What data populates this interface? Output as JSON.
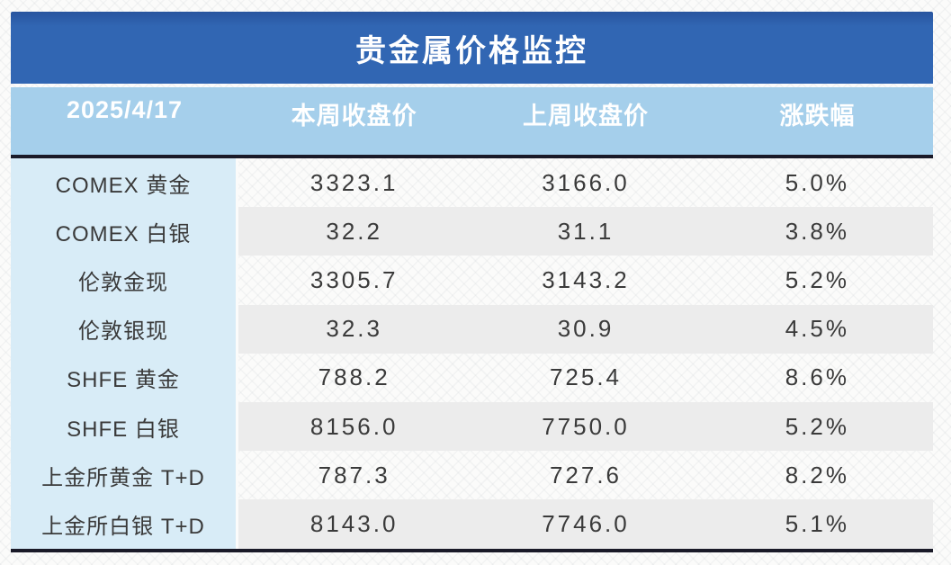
{
  "title": "贵金属价格监控",
  "header": {
    "date_label": "2025/4/17",
    "columns": [
      "本周收盘价",
      "上周收盘价",
      "涨跌幅"
    ]
  },
  "chart_data": {
    "type": "table",
    "title": "贵金属价格监控",
    "columns": [
      "2025/4/17",
      "本周收盘价",
      "上周收盘价",
      "涨跌幅"
    ],
    "rows": [
      [
        "COMEX 黄金",
        "3323.1",
        "3166.0",
        "5.0%"
      ],
      [
        "COMEX 白银",
        "32.2",
        "31.1",
        "3.8%"
      ],
      [
        "伦敦金现",
        "3305.7",
        "3143.2",
        "5.2%"
      ],
      [
        "伦敦银现",
        "32.3",
        "30.9",
        "4.5%"
      ],
      [
        "SHFE 黄金",
        "788.2",
        "725.4",
        "8.6%"
      ],
      [
        "SHFE 白银",
        "8156.0",
        "7750.0",
        "5.2%"
      ],
      [
        "上金所黄金 T+D",
        "787.3",
        "727.6",
        "8.2%"
      ],
      [
        "上金所白银 T+D",
        "8143.0",
        "7746.0",
        "5.1%"
      ]
    ]
  },
  "colors": {
    "title_bar": "#3166b3",
    "title_bar_dark": "#28549e",
    "header_bg": "#a5cfeb",
    "label_col_bg": "#d8ecf7",
    "alt_row_bg": "#ececec",
    "divider": "#1a1a28",
    "title_text": "#ffffff",
    "body_text": "#3a3a3a",
    "page_bg": "#fbfbfa"
  }
}
